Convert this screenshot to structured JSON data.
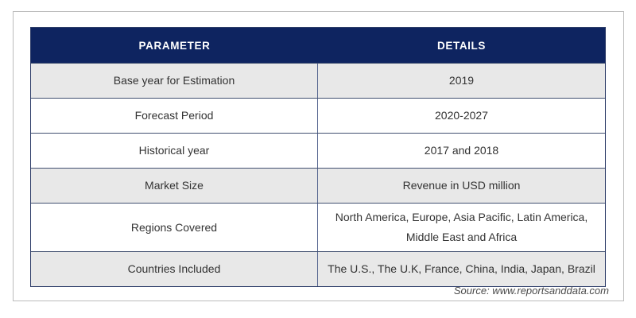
{
  "table": {
    "headers": {
      "parameter": "PARAMETER",
      "details": "DETAILS"
    },
    "rows": [
      {
        "parameter": "Base year for Estimation",
        "details": "2019"
      },
      {
        "parameter": "Forecast Period",
        "details": "2020-2027"
      },
      {
        "parameter": "Historical year",
        "details": "2017 and 2018"
      },
      {
        "parameter": "Market Size",
        "details": "Revenue in USD million"
      },
      {
        "parameter": "Regions Covered",
        "details": "North America, Europe, Asia Pacific, Latin America, Middle East and Africa"
      },
      {
        "parameter": "Countries Included",
        "details": "The U.S., The  U.K, France, China, India, Japan, Brazil"
      }
    ]
  },
  "footer": {
    "source": "Source: www.reportsanddata.com"
  },
  "colors": {
    "header_bg": "#0e2460",
    "header_text": "#ffffff",
    "shaded_row_bg": "#e8e8e8",
    "plain_row_bg": "#ffffff",
    "cell_text": "#333333",
    "table_border": "#2c3c68",
    "column_divider": "#54648e",
    "card_border": "#bcbcbc",
    "source_text": "#4a4a4a"
  }
}
